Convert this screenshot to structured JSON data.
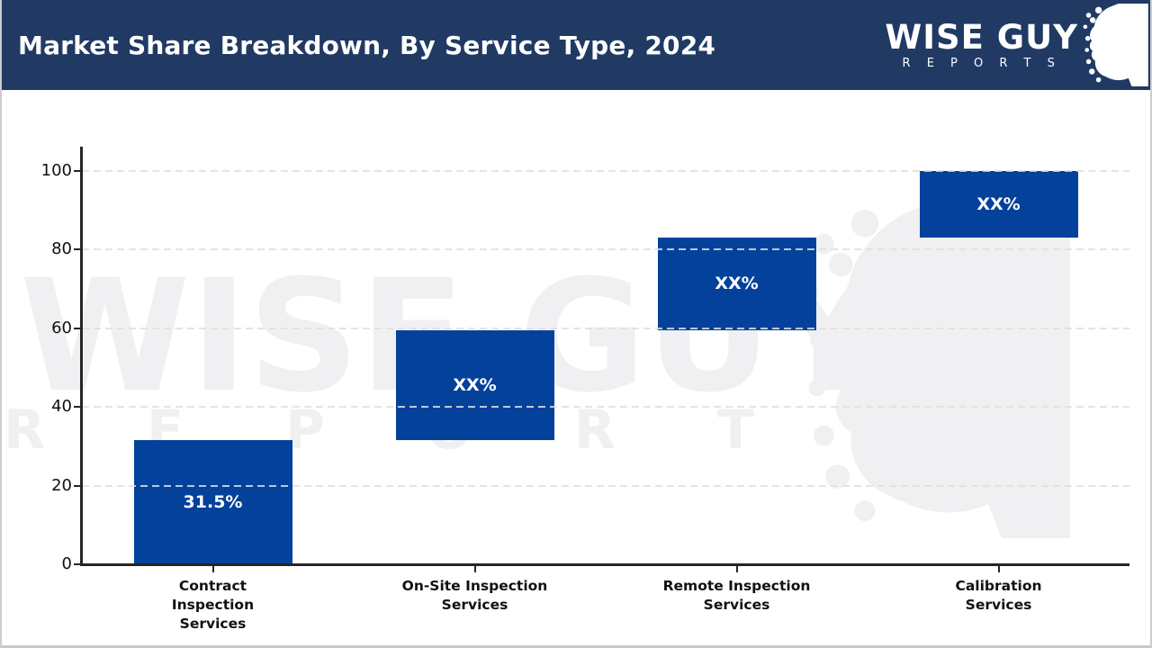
{
  "header": {
    "title": "Market Share Breakdown, By Service Type, 2024",
    "brand_name": "WISE GUY",
    "brand_sub": "R E P O R T S"
  },
  "watermark": {
    "line1": "WISE GUY",
    "line2": "R E P O R T S"
  },
  "chart_data": {
    "type": "bar",
    "subtype": "waterfall-floating-bars",
    "title": "Market Share Breakdown, By Service Type, 2024",
    "categories": [
      [
        "Contract",
        "Inspection",
        "Services"
      ],
      [
        "On-Site Inspection",
        "Services"
      ],
      [
        "Remote Inspection",
        "Services"
      ],
      [
        "Calibration",
        "Services"
      ]
    ],
    "segments": [
      {
        "start": 0,
        "end": 31.5,
        "label": "31.5%"
      },
      {
        "start": 31.5,
        "end": 59.5,
        "label": "XX%"
      },
      {
        "start": 59.5,
        "end": 83,
        "label": "XX%"
      },
      {
        "start": 83,
        "end": 100,
        "label": "XX%"
      }
    ],
    "yticks": [
      0,
      20,
      40,
      60,
      80,
      100
    ],
    "ylim": [
      0,
      106
    ],
    "xlabel": "",
    "ylabel": "",
    "grid": "horizontal-dashed",
    "legend": "none",
    "colors": {
      "bar": "#04419b",
      "grid": "#e0e0e0",
      "axis": "#262626",
      "bar_label": "#ffffff",
      "tick_label": "#111111",
      "header_bg": "#203a64",
      "watermark": "#f0f0f2"
    }
  }
}
